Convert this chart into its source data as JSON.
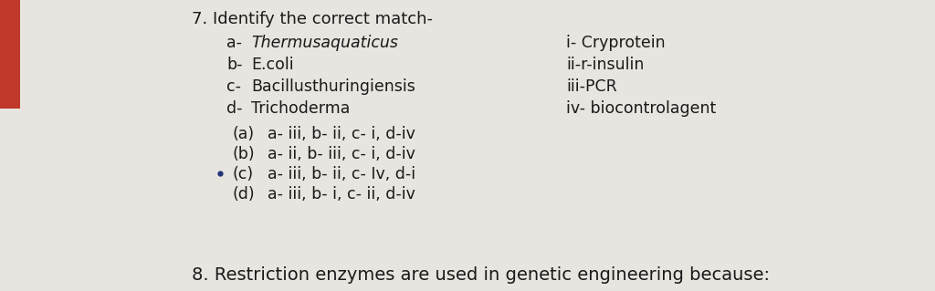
{
  "background_color": "#e8e4df",
  "left_panel_color": "#c0392b",
  "title": "7. Identify the correct match-",
  "left_items": [
    {
      "label": "a-",
      "text": "Thermusaquaticus",
      "italic": true
    },
    {
      "label": "b-",
      "text": "E.coli",
      "italic": false
    },
    {
      "label": "c-",
      "text": "Bacillusthuringiensis",
      "italic": false
    },
    {
      "label": "d-",
      "text": "Trichoderma",
      "italic": false
    }
  ],
  "right_items": [
    "i- Cryprotein",
    "ii-r-insulin",
    "iii-PCR",
    "iv- biocontrolagent"
  ],
  "options": [
    {
      "label": "(a)",
      "text": "a- iii, b- ii, c- i, d-iv",
      "dot": false
    },
    {
      "label": "(b)",
      "text": "a- ii, b- iii, c- i, d-iv",
      "dot": false
    },
    {
      "label": "(c)",
      "text": "a- iii, b- ii, c- Iv, d-i",
      "dot": true
    },
    {
      "label": "(d)",
      "text": "a- iii, b- i, c- ii, d-iv",
      "dot": false
    }
  ],
  "footer": "8. Restriction enzymes are used in genetic engineering because:",
  "text_color": "#1a1a1a",
  "body_fontsize": 12.5,
  "title_fontsize": 13.0
}
